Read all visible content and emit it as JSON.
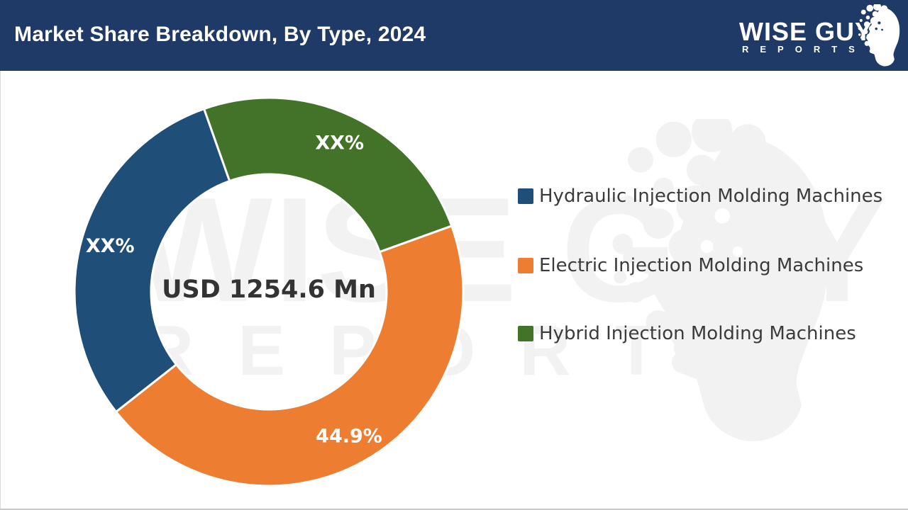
{
  "header": {
    "title": "Market Share Breakdown, By Type, 2024",
    "bg_color": "#1f3a66",
    "logo": {
      "line1": "WISE GUY",
      "line2": "REPORTS"
    }
  },
  "chart_data": {
    "type": "pie",
    "subtype": "donut",
    "hole_ratio": 0.6,
    "center_label": "USD 1254.6 Mn",
    "start_angle_deg": 231.8,
    "direction": "clockwise",
    "legend_position": "right",
    "segments": [
      {
        "name": "Hydraulic Injection Molding Machines",
        "share_pct": 30.2,
        "label": "XX%",
        "color": "#1f4e79"
      },
      {
        "name": "Hybrid Injection Molding Machines",
        "share_pct": 24.9,
        "label": "XX%",
        "color": "#427329"
      },
      {
        "name": "Electric Injection Molding Machines",
        "share_pct": 44.9,
        "label": "44.9%",
        "color": "#ed7d31"
      }
    ]
  },
  "watermark": {
    "wordmark": "WISE GUY",
    "subtitle": "REPORTS"
  },
  "colors": {
    "slice_separator": "#ffffff",
    "center_text": "#333333",
    "legend_text": "#3b3b3b",
    "watermark": "#f2f2f2"
  }
}
